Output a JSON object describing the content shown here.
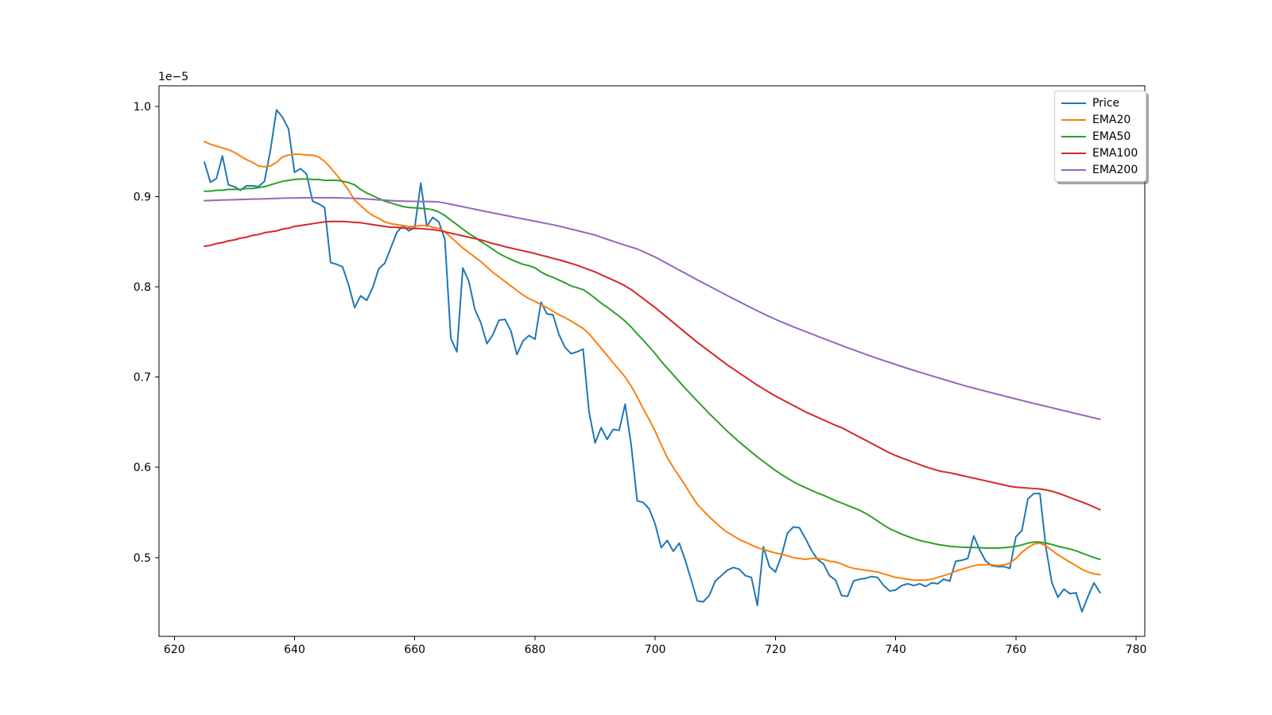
{
  "figure": {
    "background": "#ffffff"
  },
  "chart_data": {
    "type": "line",
    "title": "",
    "grid": false,
    "offset_text": "1e−5",
    "legend": {
      "position": "upper right",
      "shadow": true
    },
    "x_axis": {
      "label": "",
      "lim": [
        617.45,
        781.45
      ],
      "ticks": [
        620,
        640,
        660,
        680,
        700,
        720,
        740,
        760,
        780
      ],
      "tick_labels": [
        "620",
        "640",
        "660",
        "680",
        "700",
        "720",
        "740",
        "760",
        "780"
      ]
    },
    "y_axis": {
      "label": "",
      "lim": [
        0.4127,
        1.0228
      ],
      "ticks": [
        0.5,
        0.6,
        0.7,
        0.8,
        0.9,
        1.0
      ],
      "tick_labels": [
        "0.5",
        "0.6",
        "0.7",
        "0.8",
        "0.9",
        "1.0"
      ],
      "unit_note": "values are multiples of 1e-5"
    },
    "x": {
      "start": 625,
      "step": 1,
      "count": 150
    },
    "series": [
      {
        "name": "Price",
        "color": "#1f77b4",
        "values": [
          0.938,
          0.916,
          0.92,
          0.945,
          0.913,
          0.911,
          0.907,
          0.912,
          0.912,
          0.911,
          0.917,
          0.952,
          0.996,
          0.988,
          0.975,
          0.927,
          0.931,
          0.925,
          0.895,
          0.892,
          0.888,
          0.827,
          0.825,
          0.822,
          0.802,
          0.777,
          0.79,
          0.785,
          0.799,
          0.82,
          0.826,
          0.843,
          0.86,
          0.868,
          0.862,
          0.866,
          0.915,
          0.867,
          0.877,
          0.872,
          0.853,
          0.743,
          0.728,
          0.821,
          0.806,
          0.775,
          0.76,
          0.737,
          0.747,
          0.763,
          0.764,
          0.751,
          0.725,
          0.74,
          0.746,
          0.742,
          0.783,
          0.77,
          0.769,
          0.747,
          0.733,
          0.726,
          0.728,
          0.731,
          0.661,
          0.627,
          0.644,
          0.631,
          0.642,
          0.641,
          0.67,
          0.625,
          0.563,
          0.561,
          0.554,
          0.537,
          0.511,
          0.519,
          0.507,
          0.516,
          0.497,
          0.475,
          0.452,
          0.451,
          0.458,
          0.474,
          0.48,
          0.486,
          0.489,
          0.487,
          0.48,
          0.478,
          0.447,
          0.512,
          0.49,
          0.484,
          0.502,
          0.527,
          0.534,
          0.533,
          0.521,
          0.508,
          0.498,
          0.493,
          0.48,
          0.475,
          0.458,
          0.457,
          0.474,
          0.476,
          0.477,
          0.479,
          0.478,
          0.469,
          0.463,
          0.464,
          0.469,
          0.471,
          0.469,
          0.471,
          0.468,
          0.472,
          0.471,
          0.476,
          0.474,
          0.496,
          0.497,
          0.499,
          0.524,
          0.508,
          0.496,
          0.491,
          0.49,
          0.49,
          0.488,
          0.523,
          0.53,
          0.565,
          0.571,
          0.571,
          0.511,
          0.472,
          0.456,
          0.465,
          0.46,
          0.461,
          0.44,
          0.457,
          0.472,
          0.461
        ]
      },
      {
        "name": "EMA20",
        "color": "#ff7f0e",
        "values": [
          0.961,
          0.958,
          0.956,
          0.954,
          0.952,
          0.949,
          0.945,
          0.941,
          0.938,
          0.934,
          0.933,
          0.934,
          0.938,
          0.944,
          0.946,
          0.947,
          0.947,
          0.946,
          0.946,
          0.944,
          0.939,
          0.932,
          0.924,
          0.916,
          0.907,
          0.896,
          0.89,
          0.884,
          0.879,
          0.876,
          0.872,
          0.87,
          0.869,
          0.868,
          0.867,
          0.867,
          0.868,
          0.868,
          0.866,
          0.865,
          0.861,
          0.855,
          0.849,
          0.843,
          0.838,
          0.833,
          0.828,
          0.822,
          0.816,
          0.811,
          0.806,
          0.801,
          0.796,
          0.791,
          0.787,
          0.784,
          0.78,
          0.777,
          0.773,
          0.769,
          0.766,
          0.762,
          0.758,
          0.754,
          0.748,
          0.74,
          0.732,
          0.724,
          0.716,
          0.708,
          0.7,
          0.69,
          0.678,
          0.665,
          0.653,
          0.64,
          0.625,
          0.611,
          0.6,
          0.59,
          0.58,
          0.569,
          0.559,
          0.552,
          0.545,
          0.539,
          0.533,
          0.528,
          0.524,
          0.52,
          0.517,
          0.514,
          0.511,
          0.509,
          0.507,
          0.505,
          0.504,
          0.502,
          0.5,
          0.499,
          0.498,
          0.499,
          0.499,
          0.498,
          0.496,
          0.495,
          0.493,
          0.49,
          0.488,
          0.487,
          0.486,
          0.485,
          0.484,
          0.482,
          0.48,
          0.478,
          0.477,
          0.476,
          0.475,
          0.475,
          0.475,
          0.476,
          0.478,
          0.48,
          0.482,
          0.485,
          0.487,
          0.489,
          0.491,
          0.492,
          0.492,
          0.492,
          0.491,
          0.492,
          0.494,
          0.499,
          0.506,
          0.511,
          0.515,
          0.516,
          0.513,
          0.508,
          0.503,
          0.499,
          0.495,
          0.491,
          0.487,
          0.484,
          0.482,
          0.481
        ]
      },
      {
        "name": "EMA50",
        "color": "#2ca02c",
        "values": [
          0.906,
          0.906,
          0.907,
          0.907,
          0.908,
          0.908,
          0.908,
          0.909,
          0.909,
          0.91,
          0.911,
          0.913,
          0.915,
          0.917,
          0.918,
          0.919,
          0.9195,
          0.9195,
          0.919,
          0.919,
          0.918,
          0.918,
          0.918,
          0.917,
          0.9155,
          0.913,
          0.908,
          0.904,
          0.901,
          0.898,
          0.895,
          0.893,
          0.891,
          0.889,
          0.888,
          0.8875,
          0.887,
          0.8865,
          0.8855,
          0.883,
          0.879,
          0.874,
          0.869,
          0.864,
          0.859,
          0.855,
          0.85,
          0.846,
          0.8415,
          0.837,
          0.8335,
          0.8305,
          0.8275,
          0.825,
          0.8235,
          0.821,
          0.8165,
          0.813,
          0.8105,
          0.8075,
          0.8045,
          0.801,
          0.799,
          0.797,
          0.7925,
          0.7875,
          0.782,
          0.7775,
          0.7725,
          0.7675,
          0.762,
          0.7555,
          0.748,
          0.741,
          0.7335,
          0.726,
          0.7175,
          0.71,
          0.7025,
          0.695,
          0.6875,
          0.6805,
          0.6735,
          0.6665,
          0.6595,
          0.653,
          0.6465,
          0.64,
          0.634,
          0.628,
          0.6225,
          0.617,
          0.6115,
          0.6065,
          0.6015,
          0.5965,
          0.592,
          0.588,
          0.584,
          0.5805,
          0.5775,
          0.5745,
          0.5715,
          0.569,
          0.566,
          0.563,
          0.5605,
          0.5578,
          0.5552,
          0.5525,
          0.549,
          0.545,
          0.5405,
          0.536,
          0.532,
          0.529,
          0.526,
          0.5235,
          0.521,
          0.519,
          0.5175,
          0.516,
          0.5145,
          0.5135,
          0.5125,
          0.512,
          0.5115,
          0.5113,
          0.5112,
          0.511,
          0.5105,
          0.5105,
          0.5105,
          0.511,
          0.5115,
          0.5125,
          0.514,
          0.516,
          0.5172,
          0.5172,
          0.516,
          0.5145,
          0.5125,
          0.511,
          0.5095,
          0.5075,
          0.505,
          0.5025,
          0.5,
          0.498
        ]
      },
      {
        "name": "EMA100",
        "color": "#d62728",
        "values": [
          0.845,
          0.846,
          0.848,
          0.849,
          0.851,
          0.852,
          0.854,
          0.855,
          0.857,
          0.858,
          0.86,
          0.861,
          0.862,
          0.864,
          0.865,
          0.867,
          0.868,
          0.869,
          0.87,
          0.871,
          0.872,
          0.8725,
          0.8725,
          0.8725,
          0.872,
          0.8715,
          0.871,
          0.87,
          0.869,
          0.868,
          0.867,
          0.866,
          0.866,
          0.865,
          0.865,
          0.8645,
          0.8645,
          0.864,
          0.8635,
          0.8625,
          0.861,
          0.8595,
          0.858,
          0.8565,
          0.855,
          0.8535,
          0.852,
          0.85,
          0.848,
          0.8465,
          0.8445,
          0.843,
          0.8415,
          0.84,
          0.8385,
          0.837,
          0.835,
          0.8335,
          0.8315,
          0.83,
          0.828,
          0.826,
          0.824,
          0.8215,
          0.819,
          0.8165,
          0.8135,
          0.8105,
          0.8075,
          0.8045,
          0.801,
          0.797,
          0.792,
          0.787,
          0.782,
          0.777,
          0.7715,
          0.766,
          0.7605,
          0.755,
          0.7495,
          0.744,
          0.7385,
          0.7335,
          0.7285,
          0.7235,
          0.7185,
          0.7135,
          0.709,
          0.7045,
          0.7,
          0.6955,
          0.691,
          0.687,
          0.683,
          0.679,
          0.6755,
          0.672,
          0.6685,
          0.665,
          0.6615,
          0.6585,
          0.6555,
          0.6525,
          0.6495,
          0.6465,
          0.644,
          0.6405,
          0.637,
          0.6335,
          0.63,
          0.6265,
          0.623,
          0.6195,
          0.616,
          0.613,
          0.6105,
          0.608,
          0.6055,
          0.603,
          0.6005,
          0.5985,
          0.5965,
          0.595,
          0.594,
          0.5925,
          0.591,
          0.5895,
          0.588,
          0.5865,
          0.585,
          0.5835,
          0.582,
          0.5805,
          0.579,
          0.578,
          0.5775,
          0.577,
          0.5765,
          0.576,
          0.575,
          0.5735,
          0.5715,
          0.569,
          0.5665,
          0.564,
          0.5615,
          0.559,
          0.556,
          0.553
        ]
      },
      {
        "name": "EMA200",
        "color": "#9467bd",
        "values": [
          0.8955,
          0.8957,
          0.896,
          0.8962,
          0.8964,
          0.8966,
          0.8968,
          0.897,
          0.8972,
          0.8974,
          0.8976,
          0.8978,
          0.898,
          0.8982,
          0.8984,
          0.8985,
          0.8986,
          0.8987,
          0.8988,
          0.8988,
          0.8988,
          0.8988,
          0.8987,
          0.8985,
          0.8983,
          0.898,
          0.8977,
          0.8973,
          0.8969,
          0.8964,
          0.896,
          0.8956,
          0.8952,
          0.895,
          0.8948,
          0.8947,
          0.8946,
          0.8946,
          0.8945,
          0.8941,
          0.8929,
          0.8915,
          0.8901,
          0.8888,
          0.8874,
          0.886,
          0.8846,
          0.8833,
          0.8819,
          0.8806,
          0.8793,
          0.878,
          0.8766,
          0.8753,
          0.874,
          0.8727,
          0.8714,
          0.8701,
          0.8688,
          0.8673,
          0.8657,
          0.864,
          0.8624,
          0.8607,
          0.8591,
          0.8574,
          0.855,
          0.8527,
          0.8505,
          0.8483,
          0.8461,
          0.844,
          0.842,
          0.839,
          0.836,
          0.833,
          0.8294,
          0.8258,
          0.8222,
          0.8186,
          0.815,
          0.8114,
          0.8078,
          0.8043,
          0.8008,
          0.7973,
          0.7938,
          0.7903,
          0.7869,
          0.7835,
          0.7801,
          0.7767,
          0.7734,
          0.7702,
          0.7671,
          0.7641,
          0.7612,
          0.7584,
          0.7557,
          0.7531,
          0.7505,
          0.7479,
          0.7453,
          0.7427,
          0.7401,
          0.7376,
          0.7351,
          0.7326,
          0.7301,
          0.7277,
          0.7253,
          0.723,
          0.7207,
          0.7184,
          0.7162,
          0.714,
          0.7118,
          0.7096,
          0.7075,
          0.7054,
          0.7034,
          0.7014,
          0.6994,
          0.6974,
          0.6954,
          0.6934,
          0.6914,
          0.6895,
          0.6877,
          0.686,
          0.6843,
          0.6826,
          0.6809,
          0.6792,
          0.6775,
          0.6758,
          0.6741,
          0.6724,
          0.6708,
          0.6692,
          0.6676,
          0.666,
          0.6644,
          0.6628,
          0.6612,
          0.6596,
          0.658,
          0.6564,
          0.6548,
          0.6532
        ]
      }
    ]
  }
}
